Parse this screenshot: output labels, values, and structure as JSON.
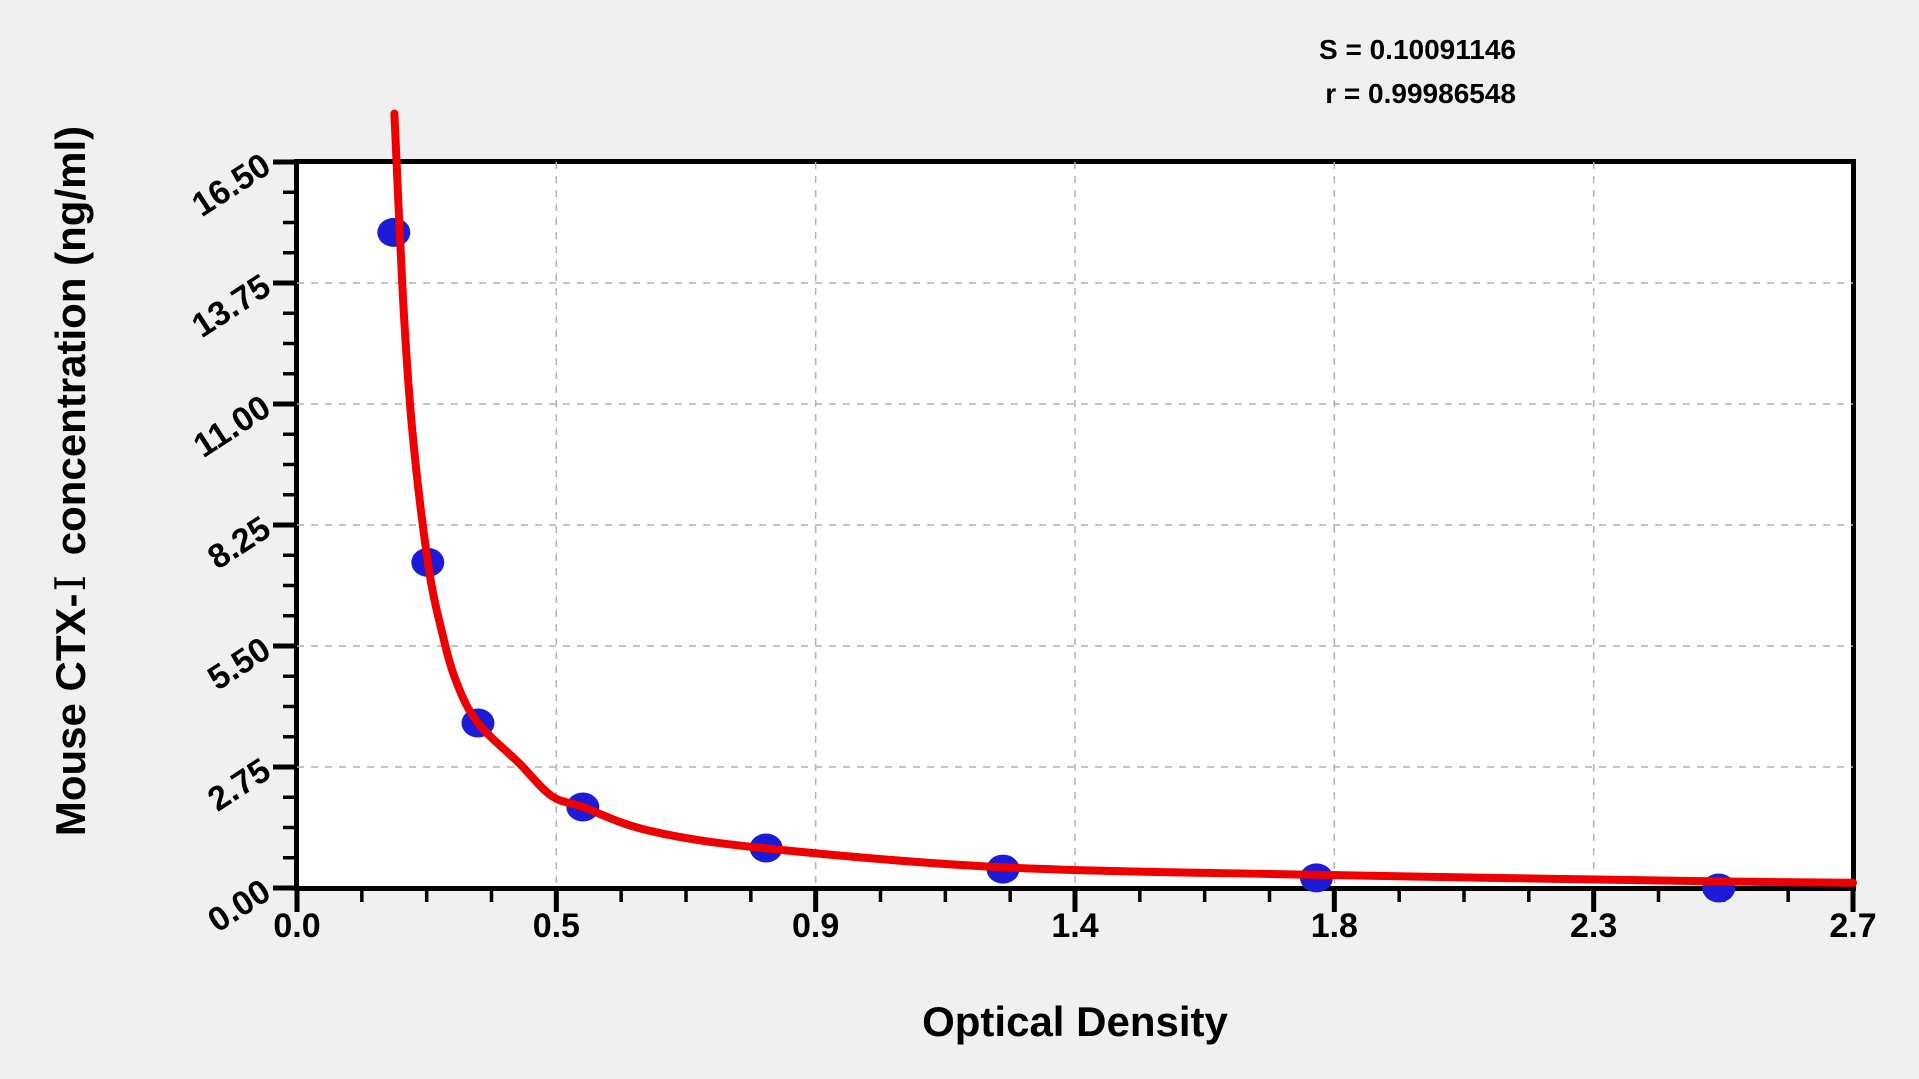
{
  "stats": {
    "s_label": "S = 0.10091146",
    "r_label": "r = 0.99986548"
  },
  "axes": {
    "x": {
      "title": "Optical Density",
      "min": 0,
      "max": 2.7,
      "major_tick_values": [
        0,
        0.45,
        0.9,
        1.35,
        1.8,
        2.25,
        2.7
      ],
      "major_tick_labels": [
        "0.0",
        "0.5",
        "0.9",
        "1.4",
        "1.8",
        "2.3",
        "2.7"
      ],
      "minor_ticks_per_interval": 3
    },
    "y": {
      "title_prefix": "Mouse CTX-",
      "title_roman": "Ⅰ",
      "title_suffix": " concentration (ng/ml)",
      "min": 0,
      "max": 16.5,
      "major_tick_values": [
        0,
        2.75,
        5.5,
        8.25,
        11,
        13.75,
        16.5
      ],
      "major_tick_labels": [
        "0.00",
        "2.75",
        "5.50",
        "8.25",
        "11.00",
        "13.75",
        "16.50"
      ],
      "minor_ticks_per_interval": 3
    }
  },
  "chart_data": {
    "type": "scatter",
    "title": "",
    "xlabel": "Optical Density",
    "ylabel": "Mouse CTX-Ⅰ concentration (ng/ml)",
    "xlim": [
      0,
      2.7
    ],
    "ylim": [
      0,
      16.5
    ],
    "grid": "dashed-major",
    "legend": "none",
    "fit_statistics": {
      "S": 0.10091146,
      "r": 0.99986548
    },
    "points": [
      {
        "od": 0.168,
        "conc": 14.9
      },
      {
        "od": 0.227,
        "conc": 7.4
      },
      {
        "od": 0.314,
        "conc": 3.75
      },
      {
        "od": 0.496,
        "conc": 1.84
      },
      {
        "od": 0.814,
        "conc": 0.91
      },
      {
        "od": 1.225,
        "conc": 0.43
      },
      {
        "od": 1.769,
        "conc": 0.23
      },
      {
        "od": 2.467,
        "conc": 0.0
      }
    ],
    "curve": [
      {
        "od": 0.169,
        "conc": 17.6
      },
      {
        "od": 0.184,
        "conc": 13.4
      },
      {
        "od": 0.2,
        "conc": 10.4
      },
      {
        "od": 0.227,
        "conc": 7.41
      },
      {
        "od": 0.25,
        "conc": 5.9
      },
      {
        "od": 0.276,
        "conc": 4.7
      },
      {
        "od": 0.314,
        "conc": 3.75
      },
      {
        "od": 0.386,
        "conc": 2.83
      },
      {
        "od": 0.441,
        "conc": 2.1
      },
      {
        "od": 0.496,
        "conc": 1.84
      },
      {
        "od": 0.612,
        "conc": 1.3
      },
      {
        "od": 0.814,
        "conc": 0.9
      },
      {
        "od": 1.225,
        "conc": 0.47
      },
      {
        "od": 1.769,
        "conc": 0.3
      },
      {
        "od": 2.467,
        "conc": 0.15
      },
      {
        "od": 2.7,
        "conc": 0.12
      }
    ],
    "colors": {
      "curve": "#ee0000",
      "points": "#1c1cd8",
      "grid": "#b0b0b0",
      "axis": "#000000",
      "plot_background": "#ffffff",
      "page_background": "#f0f0f0"
    }
  }
}
